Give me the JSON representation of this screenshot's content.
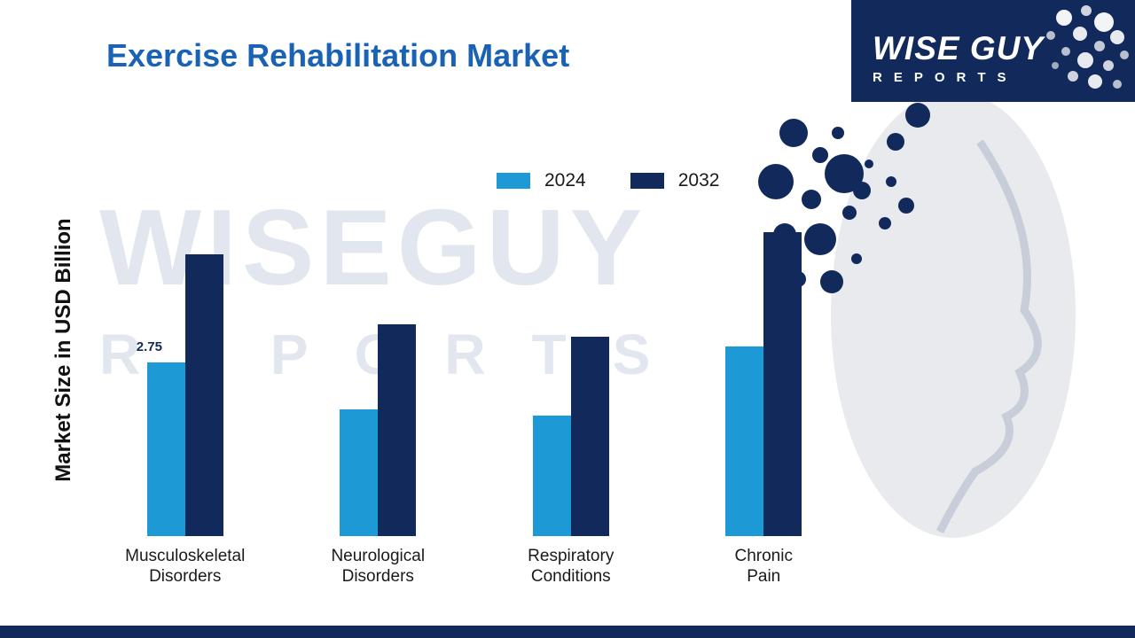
{
  "page": {
    "title": "Exercise Rehabilitation Market"
  },
  "brand": {
    "line1": "WISE GUY",
    "line2": "REPORTS",
    "bg_color": "#12295b",
    "text_color": "#ffffff"
  },
  "watermark": {
    "line1": "WISEGUY",
    "line2": "REPORTS"
  },
  "colors": {
    "title_blue": "#1a62b3",
    "navy": "#12295b",
    "light_blue": "#1d9ad6",
    "head_gray": "#e8eaee"
  },
  "chart_data": {
    "type": "bar",
    "title": "Exercise Rehabilitation Market",
    "ylabel": "Market Size in USD Billion",
    "xlabel": "",
    "categories": [
      "Musculoskeletal Disorders",
      "Neurological Disorders",
      "Respiratory Conditions",
      "Chronic Pain"
    ],
    "series": [
      {
        "name": "2024",
        "color": "#1d9ad6",
        "values": [
          2.75,
          2.0,
          1.9,
          3.0
        ]
      },
      {
        "name": "2032",
        "color": "#12295b",
        "values": [
          4.45,
          3.35,
          3.15,
          4.8
        ]
      }
    ],
    "annotations": [
      {
        "series": "2024",
        "category": "Musculoskeletal Disorders",
        "text": "2.75"
      }
    ],
    "ylim": [
      0,
      5
    ],
    "grid": false,
    "legend_position": "top"
  }
}
